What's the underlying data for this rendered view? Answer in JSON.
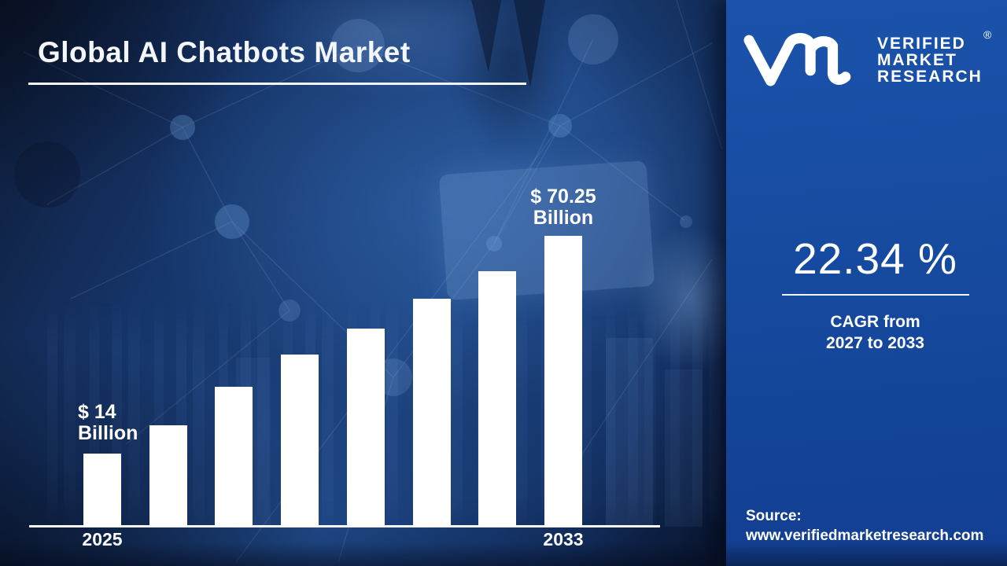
{
  "page": {
    "title": "Global AI Chatbots Market"
  },
  "brand": {
    "logo_icon": "vmr-monogram-icon",
    "name_lines": [
      "VERIFIED",
      "MARKET",
      "RESEARCH"
    ],
    "registered_symbol": "®"
  },
  "stats": {
    "cagr_value": "22.34 %",
    "cagr_caption_line1": "CAGR from",
    "cagr_caption_line2": "2027 to 2033"
  },
  "source": {
    "label": "Source:",
    "url": "www.verifiedmarketresearch.com"
  },
  "chart_data": {
    "type": "bar",
    "title": "Global AI Chatbots Market",
    "unit": "USD Billion",
    "categories": [
      "2025",
      "",
      "",
      "",
      "",
      "",
      "",
      "2033"
    ],
    "values_usd_billion_est": [
      14,
      21.3,
      31.2,
      39.6,
      46.3,
      54.0,
      61.1,
      70.25
    ],
    "bar_heights_relative": [
      0.251,
      0.349,
      0.481,
      0.592,
      0.681,
      0.784,
      0.878,
      1.0
    ],
    "first_bar_label_lines": [
      "$ 14",
      "Billion"
    ],
    "last_bar_label_lines": [
      "$ 70.25",
      "Billion"
    ],
    "x_axis_labels": [
      "2025",
      "2033"
    ],
    "ylim": [
      0,
      75
    ],
    "grid": "off",
    "legend": "none",
    "bar_color": "#ffffff"
  },
  "colors": {
    "panel_blue": "#164a9f",
    "background_dark": "#0d1a35",
    "background_mid": "#1e4684",
    "bar_white": "#ffffff",
    "text_white": "#ffffff"
  }
}
